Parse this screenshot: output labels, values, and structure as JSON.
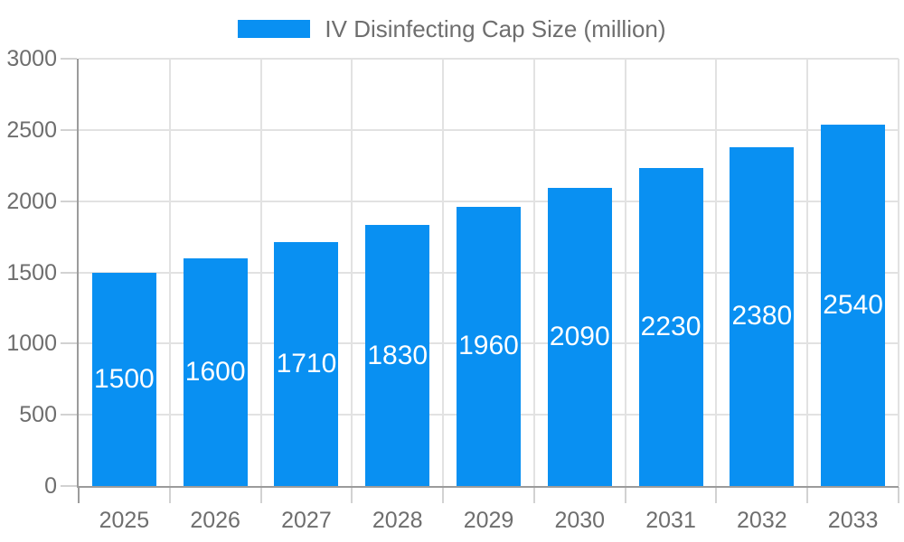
{
  "chart_data": {
    "type": "bar",
    "title": "IV Disinfecting Cap Size (million)",
    "legend_position": "top-center",
    "categories": [
      "2025",
      "2026",
      "2027",
      "2028",
      "2029",
      "2030",
      "2031",
      "2032",
      "2033"
    ],
    "values": [
      1500,
      1600,
      1710,
      1830,
      1960,
      2090,
      2230,
      2380,
      2540
    ],
    "xlabel": "",
    "ylabel": "",
    "ylim": [
      0,
      3000
    ],
    "yticks": [
      0,
      500,
      1000,
      1500,
      2000,
      2500,
      3000
    ],
    "grid": true,
    "bar_labels_inside": true
  },
  "colors": {
    "bar": "#0990f2",
    "bar_label": "#ffffff",
    "axis": "#9b9b9b",
    "grid": "#e2e2e2",
    "tick": "#d2d2d2",
    "text": "#6e6e6e"
  }
}
